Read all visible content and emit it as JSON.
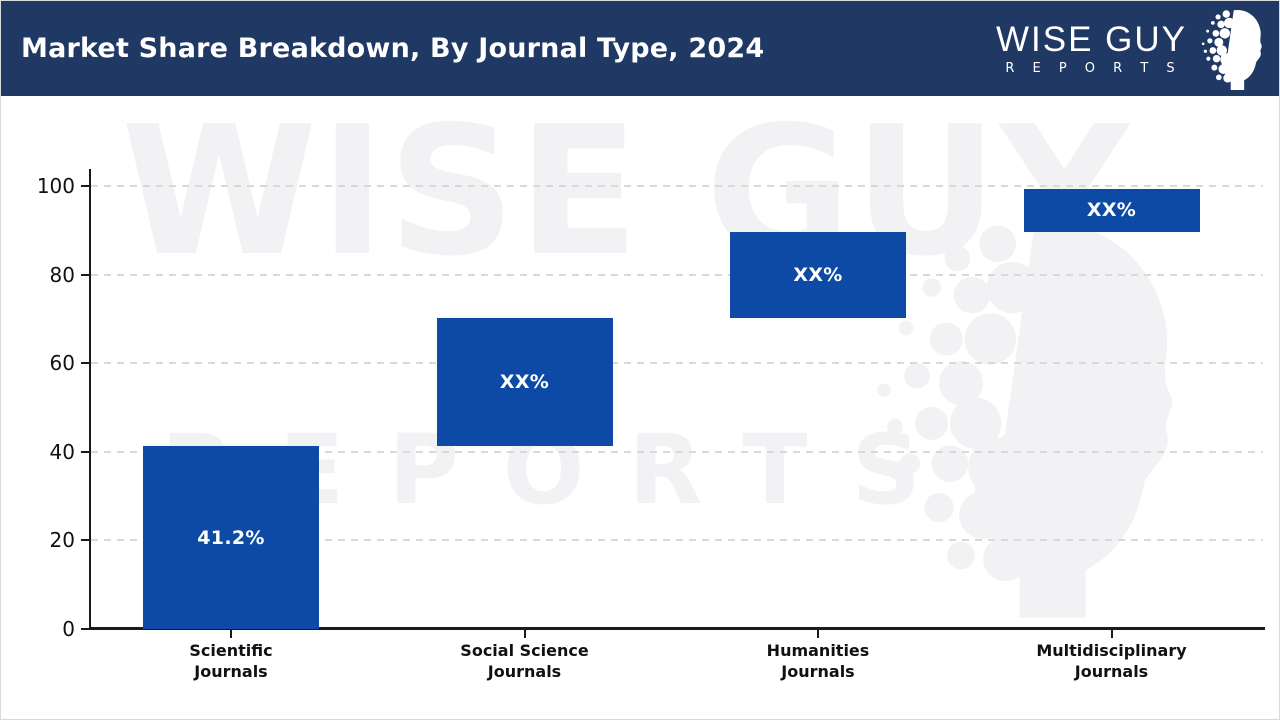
{
  "header": {
    "title": "Market Share Breakdown, By Journal Type, 2024"
  },
  "logo": {
    "name": "WISE GUY",
    "subtitle": "R E P O R T S"
  },
  "watermark": {
    "line1": "WISE GUY",
    "line2": "REPORTS"
  },
  "colors": {
    "header_bg": "#1f3864",
    "bar_blue": "#0d4aa5",
    "grid_gray": "#d9d9d9",
    "watermark_gray": "#f2f2f4",
    "axis_black": "#1a1a1a"
  },
  "chart_data": {
    "type": "bar",
    "subtype": "waterfall",
    "title": "Market Share Breakdown, By Journal Type, 2024",
    "xlabel": "",
    "ylabel": "",
    "categories": [
      "Scientific\nJournals",
      "Social Science\nJournals",
      "Humanities\nJournals",
      "Multidisciplinary\nJournals"
    ],
    "segments": [
      {
        "start": 0,
        "end": 41.2,
        "label": "41.2%"
      },
      {
        "start": 41.2,
        "end": 70.3,
        "label": "XX%"
      },
      {
        "start": 70.3,
        "end": 89.7,
        "label": "XX%"
      },
      {
        "start": 89.7,
        "end": 99.4,
        "label": "XX%"
      }
    ],
    "yticks": [
      0,
      20,
      40,
      60,
      80,
      100
    ],
    "ylim": [
      0,
      105
    ],
    "grid": "horizontal-dashed",
    "legend": "none",
    "bar_color": "#0d4aa5",
    "bar_label_color": "#ffffff"
  }
}
